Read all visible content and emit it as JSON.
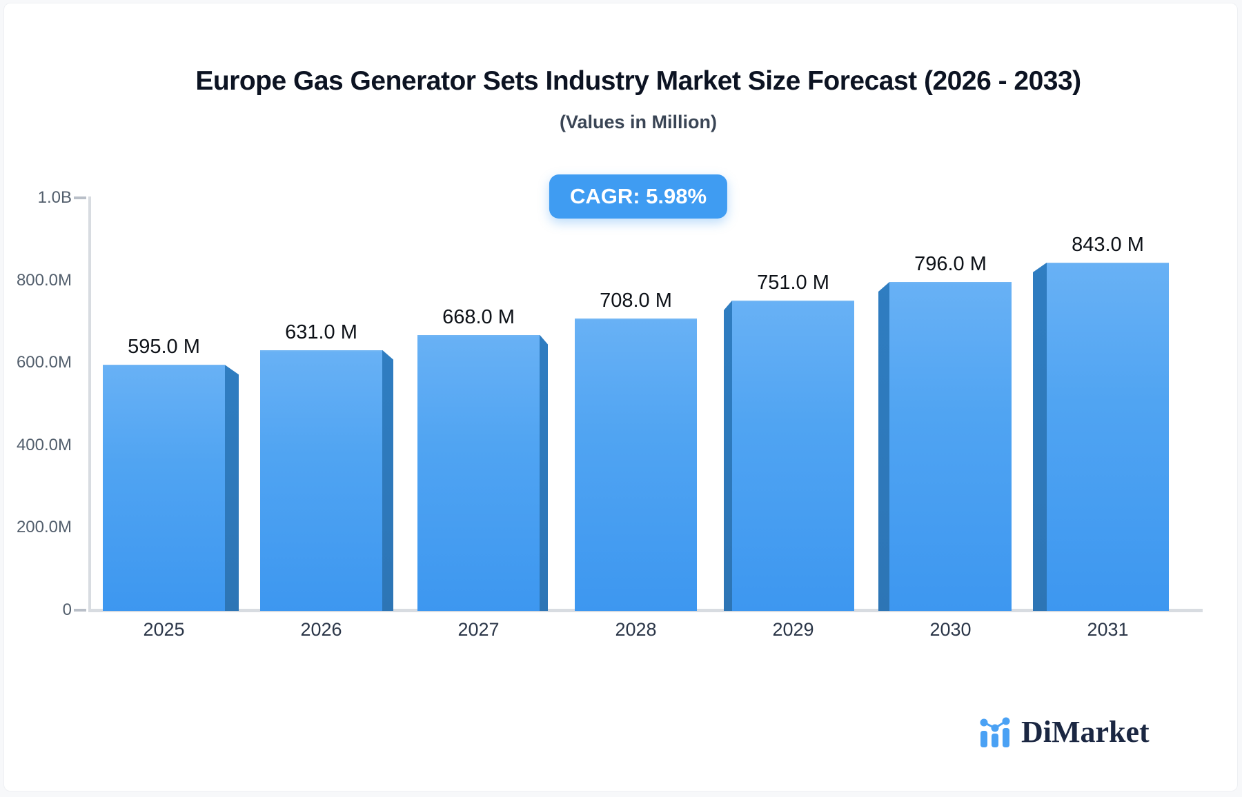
{
  "page": {
    "background": "#f7f8fa",
    "card_background": "#ffffff"
  },
  "header": {
    "title": "Europe Gas Generator Sets Industry Market Size Forecast (2026 - 2033)",
    "subtitle": "(Values in Million)",
    "cagr_badge": "CAGR: 5.98%",
    "badge_color": "#3f9cf2"
  },
  "chart_data": {
    "type": "bar",
    "title": "Europe Gas Generator Sets Industry Market Size Forecast (2026 - 2033)",
    "subtitle": "(Values in Million)",
    "annotation": "CAGR: 5.98%",
    "categories": [
      "2025",
      "2026",
      "2027",
      "2028",
      "2029",
      "2030",
      "2031"
    ],
    "values": [
      595,
      631,
      668,
      708,
      751,
      796,
      843
    ],
    "value_labels": [
      "595.0 M",
      "631.0 M",
      "668.0 M",
      "708.0 M",
      "751.0 M",
      "796.0 M",
      "843.0 M"
    ],
    "unit": "Million",
    "xlabel": "",
    "ylabel": "",
    "ylim": [
      0,
      1000
    ],
    "y_ticks": [
      {
        "label": "1.0B",
        "value": 1000,
        "dash": true
      },
      {
        "label": "800.0M",
        "value": 800,
        "dash": false
      },
      {
        "label": "600.0M",
        "value": 600,
        "dash": false
      },
      {
        "label": "400.0M",
        "value": 400,
        "dash": false
      },
      {
        "label": "200.0M",
        "value": 200,
        "dash": false
      },
      {
        "label": "0",
        "value": 0,
        "dash": true
      }
    ],
    "grid": false,
    "legend": false,
    "bar_color_top": "#68b1f5",
    "bar_color_bottom": "#3d97f0",
    "bar_side_color": "#2d76b6",
    "axis_color": "#d8dce1",
    "style": "pseudo-3d bars, depth faces toward chart center"
  },
  "footer": {
    "logo_text": "DiMarket",
    "logo_text_color": "#1b2742",
    "logo_icon": "bar-chart-with-trend-dots",
    "logo_icon_color": "#4aa1f4"
  }
}
